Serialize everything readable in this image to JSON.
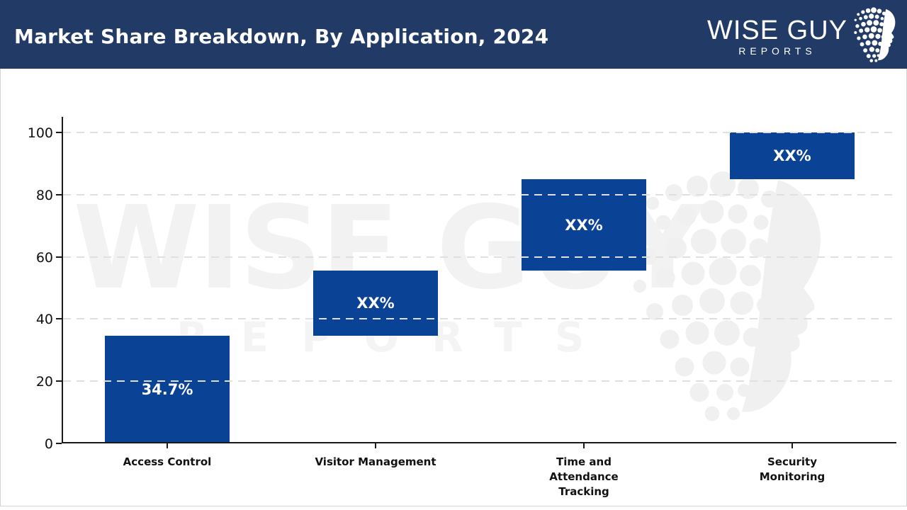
{
  "header": {
    "title": "Market Share Breakdown, By Application, 2024",
    "logo_line1": "WISE GUY",
    "logo_line2": "REPORTS",
    "bg_color": "#213a66"
  },
  "watermark": {
    "line1": "WISE GUY",
    "line2": "REPORTS"
  },
  "chart_data": {
    "type": "bar",
    "subtype": "waterfall",
    "title": "Market Share Breakdown, By Application, 2024",
    "categories": [
      "Access Control",
      "Visitor Management",
      "Time and\nAttendance\nTracking",
      "Security\nMonitoring"
    ],
    "segments": [
      {
        "category": "Access Control",
        "start": 0,
        "end": 34.7,
        "label": "34.7%"
      },
      {
        "category": "Visitor Management",
        "start": 34.7,
        "end": 55.5,
        "label": "XX%"
      },
      {
        "category": "Time and Attendance Tracking",
        "start": 55.5,
        "end": 85.0,
        "label": "XX%"
      },
      {
        "category": "Security Monitoring",
        "start": 85.0,
        "end": 100.0,
        "label": "XX%"
      }
    ],
    "bar_labels": [
      "34.7%",
      "XX%",
      "XX%",
      "XX%"
    ],
    "ylim": [
      0,
      100
    ],
    "yticks": [
      0,
      20,
      40,
      60,
      80,
      100
    ],
    "grid": "horizontal dashed",
    "legend": "none",
    "bar_color": "#0a4296",
    "bar_label_color": "#ffffff",
    "axis_color": "#1a1a1a",
    "gridline_color": "#e0e0e0"
  }
}
